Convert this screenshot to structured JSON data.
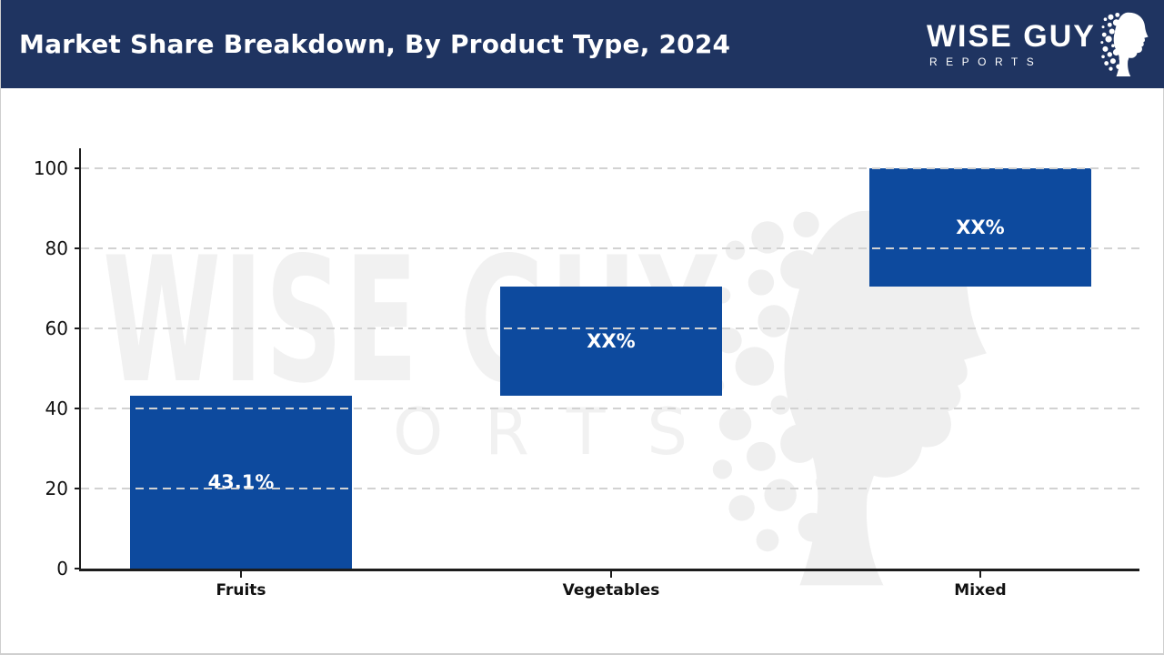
{
  "header": {
    "title": "Market Share Breakdown, By Product Type, 2024",
    "logo": {
      "line1": "WISE GUY",
      "line2": "REPORTS"
    }
  },
  "watermark": {
    "line1": "WISE GUY",
    "line2": "REPORTS"
  },
  "chart_data": {
    "type": "bar",
    "subtype": "floating-segment-waterfall",
    "title": "Market Share Breakdown, By Product Type, 2024",
    "categories": [
      "Fruits",
      "Vegetables",
      "Mixed"
    ],
    "segments": [
      {
        "category": "Fruits",
        "start": 0,
        "end": 43.1,
        "label": "43.1%"
      },
      {
        "category": "Vegetables",
        "start": 43.1,
        "end": 70.5,
        "label": "XX%"
      },
      {
        "category": "Mixed",
        "start": 70.5,
        "end": 100,
        "label": "XX%"
      }
    ],
    "xlabel": "",
    "ylabel": "",
    "yticks": [
      0,
      20,
      40,
      60,
      80,
      100
    ],
    "ylim": [
      0,
      105
    ],
    "grid": true,
    "gridline_style": "dashed",
    "legend": "none",
    "bar_color": "#0d4a9e",
    "value_label_color": "#ffffff"
  },
  "colors": {
    "header_bg": "#1f3461",
    "bar_blue": "#0d4a9e",
    "axis": "#1c1c1c",
    "gridline": "#d2d2d2",
    "watermark": "#f1f1f1",
    "page_border": "#cfcfcf"
  }
}
